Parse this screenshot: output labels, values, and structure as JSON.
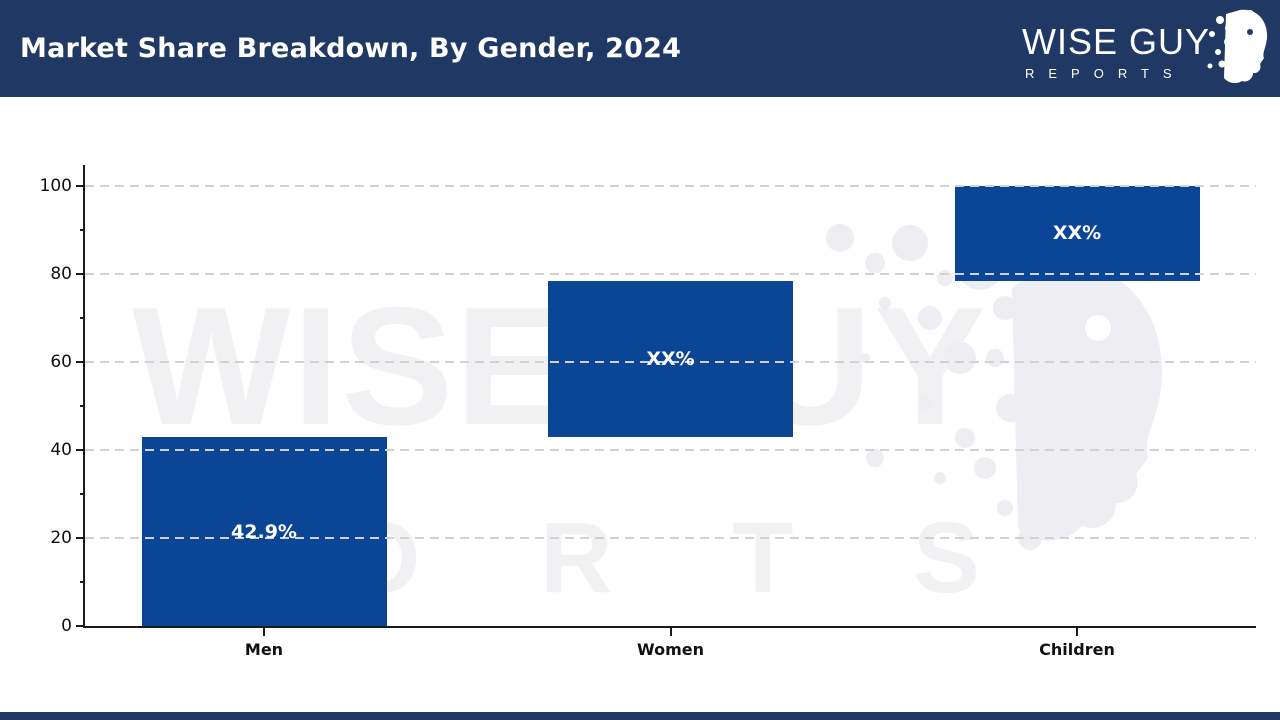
{
  "header": {
    "title": "Market Share Breakdown, By Gender, 2024",
    "bg_color": "#203864",
    "logo": {
      "line1": "WISE GUY",
      "line2": "REPORTS"
    }
  },
  "watermark": {
    "line1": "WISE GUY",
    "line2": "P O R T S"
  },
  "chart_data": {
    "type": "bar",
    "subtype": "waterfall",
    "title": "Market Share Breakdown, By Gender, 2024",
    "categories": [
      "Men",
      "Women",
      "Children"
    ],
    "bars": [
      {
        "category": "Men",
        "start": 0,
        "end": 42.9,
        "label": "42.9%"
      },
      {
        "category": "Women",
        "start": 42.9,
        "end": 78.5,
        "label": "XX%"
      },
      {
        "category": "Children",
        "start": 78.5,
        "end": 100,
        "label": "XX%"
      }
    ],
    "ylim": [
      0,
      100
    ],
    "yticks": [
      0,
      20,
      40,
      60,
      80,
      100
    ],
    "minor_yticks": [
      10,
      30,
      50,
      70,
      90
    ],
    "grid": "dashed-horizontal",
    "legend": "none",
    "bar_color": "#0b4596",
    "value_label_color": "#ffffff",
    "axis_color": "#1a1a1a"
  },
  "footer": {
    "bg_color": "#203864"
  }
}
